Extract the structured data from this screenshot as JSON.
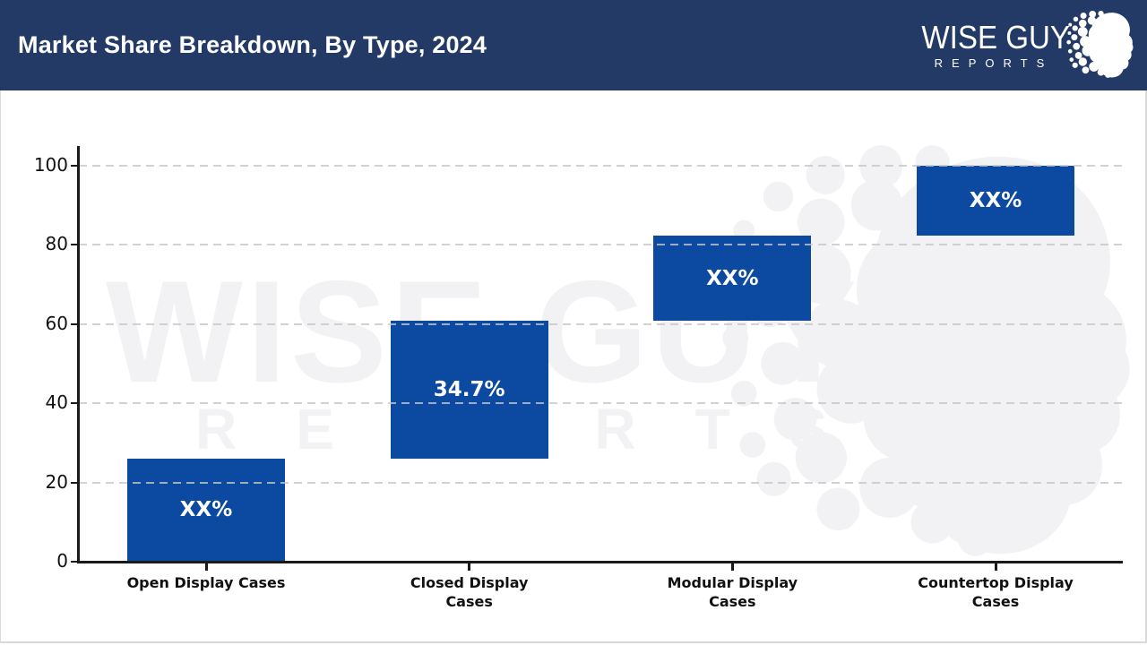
{
  "header": {
    "title": "Market Share Breakdown, By Type, 2024",
    "logo": {
      "line1": "WISE GUY",
      "line2": "REPORTS"
    }
  },
  "watermark": {
    "line1": "WISE GUY",
    "line2": "REPORTS"
  },
  "colors": {
    "header_bg": "#233A66",
    "bar": "#0B4AA0",
    "grid": "#D6D6D6",
    "watermark": "#F2F2F4",
    "axis": "#1a1a1a",
    "label_text": "#ffffff"
  },
  "chart_data": {
    "type": "bar",
    "variant": "floating-segment-waterfall",
    "title": "Market Share Breakdown, By Type, 2024",
    "categories": [
      "Open Display Cases",
      "Closed Display Cases",
      "Modular Display Cases",
      "Countertop Display Cases"
    ],
    "category_lines": [
      [
        "Open Display Cases"
      ],
      [
        "Closed Display",
        "Cases"
      ],
      [
        "Modular Display",
        "Cases"
      ],
      [
        "Countertop Display",
        "Cases"
      ]
    ],
    "segments": [
      {
        "category": "Open Display Cases",
        "from": 0,
        "to": 26.1,
        "label": "XX%"
      },
      {
        "category": "Closed Display Cases",
        "from": 26.1,
        "to": 60.8,
        "label": "34.7%"
      },
      {
        "category": "Modular Display Cases",
        "from": 60.8,
        "to": 82.4,
        "label": "XX%"
      },
      {
        "category": "Countertop Display Cases",
        "from": 82.4,
        "to": 100,
        "label": "XX%"
      }
    ],
    "ylim": [
      0,
      100
    ],
    "yticks": [
      0,
      20,
      40,
      60,
      80,
      100
    ],
    "xlabel": "",
    "ylabel": "",
    "grid": "horizontal-dashed",
    "legend": "none"
  }
}
